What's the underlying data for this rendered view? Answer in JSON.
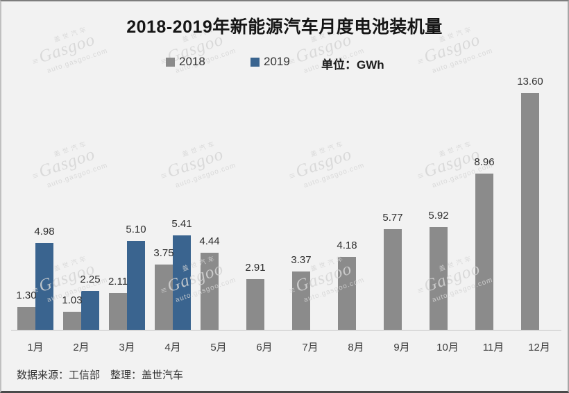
{
  "title": "2018-2019年新能源汽车月度电池装机量",
  "legend": {
    "items": [
      {
        "label": "2018",
        "color": "#8b8b8b"
      },
      {
        "label": "2019",
        "color": "#3a648f"
      }
    ],
    "unit": "单位：GWh"
  },
  "footer": {
    "text": "数据来源：工信部　整理：盖世汽车"
  },
  "watermark": {
    "cn": "盖世汽车",
    "logo_glyph": "≡",
    "brand": "Gasgoo",
    "site": "auto.gasgoo.com"
  },
  "chart_data": {
    "type": "bar",
    "title": "2018-2019年新能源汽车月度电池装机量",
    "unit": "GWh",
    "categories": [
      "1月",
      "2月",
      "3月",
      "4月",
      "5月",
      "6月",
      "7月",
      "8月",
      "9月",
      "10月",
      "11月",
      "12月"
    ],
    "series": [
      {
        "name": "2018",
        "color": "#8b8b8b",
        "values": [
          1.3,
          1.03,
          2.11,
          3.75,
          4.44,
          2.91,
          3.37,
          4.18,
          5.77,
          5.92,
          8.96,
          13.6
        ]
      },
      {
        "name": "2019",
        "color": "#3a648f",
        "values": [
          4.98,
          2.25,
          5.1,
          5.41,
          null,
          null,
          null,
          null,
          null,
          null,
          null,
          null
        ]
      }
    ],
    "value_labels": true,
    "ylim": [
      0,
      14.2
    ],
    "grid": false,
    "legend_position": "top",
    "xlabel": "",
    "ylabel": "GWh"
  }
}
